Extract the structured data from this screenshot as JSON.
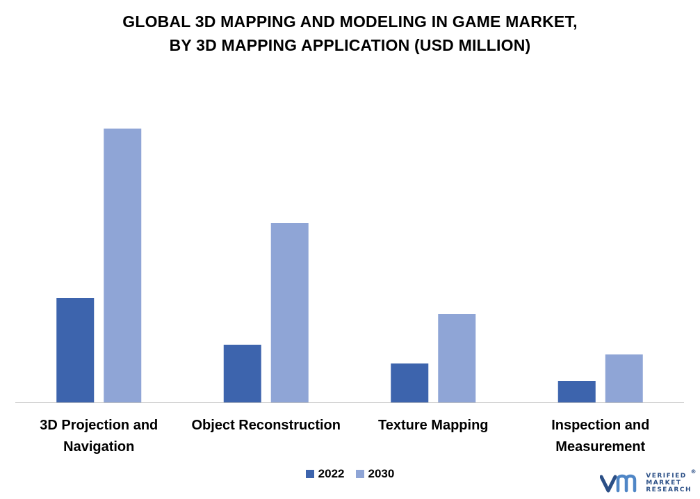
{
  "chart_data": {
    "type": "bar",
    "title": [
      "GLOBAL 3D MAPPING AND MODELING IN GAME MARKET,",
      "BY 3D MAPPING APPLICATION (USD MILLION)"
    ],
    "categories": [
      [
        "3D Projection and",
        "Navigation"
      ],
      [
        "Object Reconstruction"
      ],
      [
        "Texture Mapping"
      ],
      [
        "Inspection and",
        "Measurement"
      ]
    ],
    "series": [
      {
        "name": "2022",
        "color": "#3d64ad",
        "values": [
          150,
          83,
          56,
          31
        ]
      },
      {
        "name": "2030",
        "color": "#8fa5d6",
        "values": [
          394,
          258,
          127,
          69
        ]
      }
    ],
    "ylim": [
      0,
      430
    ],
    "grid": false,
    "legend_position": "bottom-center",
    "axis_color": "#bfbfbf"
  },
  "brand": {
    "logo_lines": [
      "VERIFIED",
      "MARKET",
      "RESEARCH"
    ],
    "logo_mark": "vm",
    "color": "#2b4f86",
    "registered": "®"
  }
}
